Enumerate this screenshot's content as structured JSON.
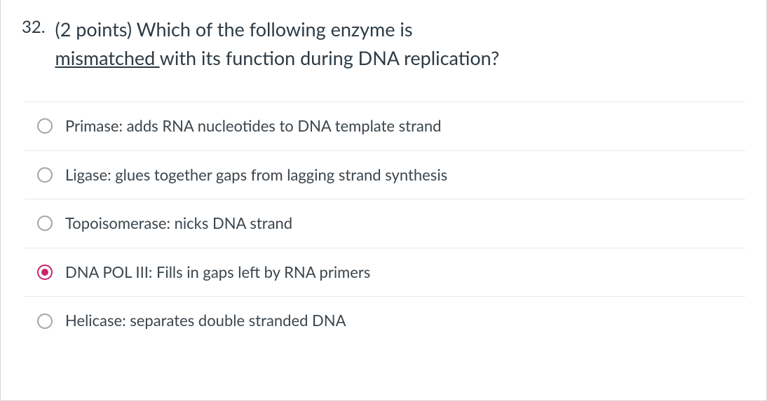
{
  "question": {
    "number": "32.",
    "points_prefix": "(2 points) ",
    "stem_part1": "Which of the following enzyme is ",
    "stem_underlined": "mismatched ",
    "stem_part2": "with its function during DNA replication?"
  },
  "options": [
    {
      "label": "Primase: adds RNA nucleotides to DNA template strand",
      "selected": false
    },
    {
      "label": "Ligase: glues together gaps from lagging strand synthesis",
      "selected": false
    },
    {
      "label": "Topoisomerase: nicks DNA strand",
      "selected": false
    },
    {
      "label": "DNA POL III: Fills in gaps left by RNA primers",
      "selected": true
    },
    {
      "label": "Helicase: separates double stranded DNA",
      "selected": false
    }
  ],
  "colors": {
    "border": "#d6d6d6",
    "option_divider": "#e8e8e8",
    "text_primary": "#2d3b45",
    "text_option": "#3c454c",
    "radio_border": "#9fa6ab",
    "radio_selected": "#c8246c",
    "background": "#ffffff"
  }
}
